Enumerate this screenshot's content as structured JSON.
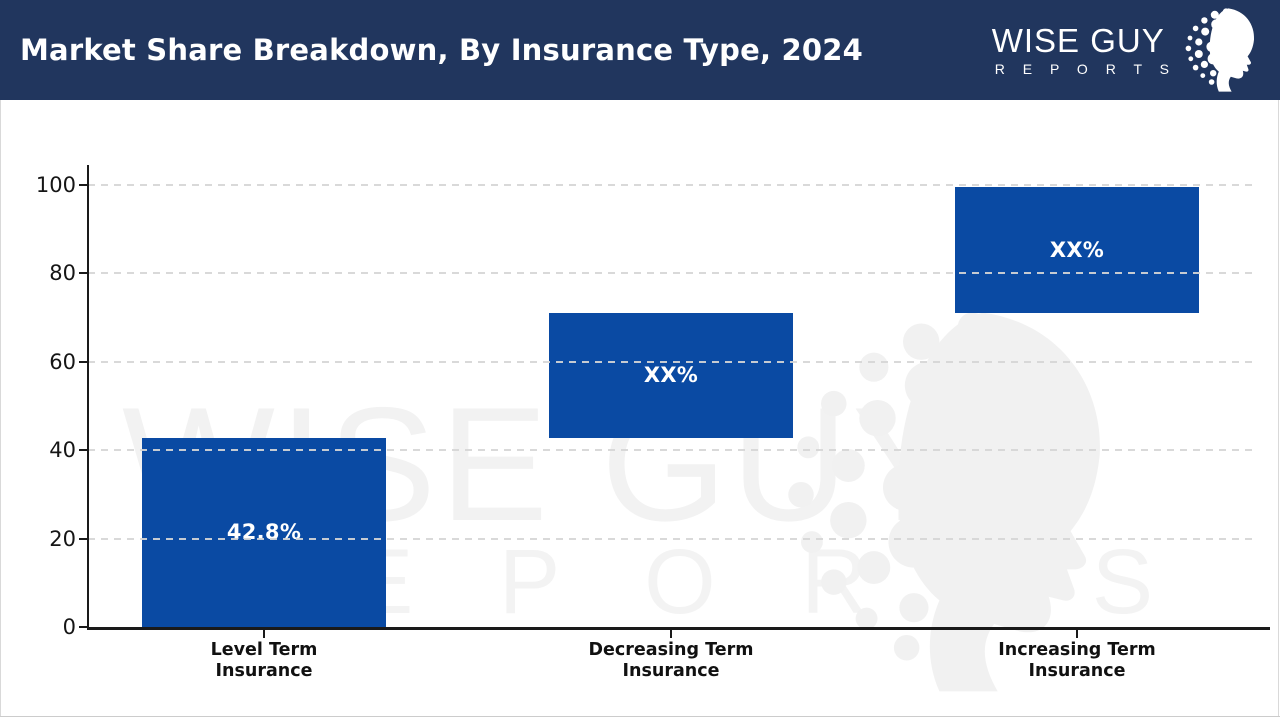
{
  "header": {
    "title": "Market Share Breakdown, By Insurance Type, 2024",
    "logo": {
      "line1": "WISE GUY",
      "line2": "R E P O R T S"
    }
  },
  "watermark": {
    "line1": "WISE GUY",
    "line2": "R E P O R T S"
  },
  "chart_data": {
    "type": "bar",
    "subtype": "floating-range-bars",
    "title": "Market Share Breakdown, By Insurance Type, 2024",
    "categories": [
      "Level Term Insurance",
      "Decreasing Term Insurance",
      "Increasing Term Insurance"
    ],
    "bars": [
      {
        "category_line1": "Level Term",
        "category_line2": "Insurance",
        "value_label": "42.8%",
        "range_start": 0,
        "range_end": 42.8
      },
      {
        "category_line1": "Decreasing Term",
        "category_line2": "Insurance",
        "value_label": "XX%",
        "range_start": 42.8,
        "range_end": 71.0
      },
      {
        "category_line1": "Increasing Term",
        "category_line2": "Insurance",
        "value_label": "XX%",
        "range_start": 71.0,
        "range_end": 99.5
      }
    ],
    "yticks": [
      "0",
      "20",
      "40",
      "60",
      "80",
      "100"
    ],
    "ylim": [
      0,
      104.5
    ],
    "xlabel": "",
    "ylabel": "",
    "grid": "horizontal-dashed",
    "legend": "none"
  },
  "colors": {
    "header_bg": "#21365e",
    "bar_blue": "#0a4aa3",
    "grid": "#d6d6d6",
    "axis": "#1a1a1a",
    "watermark": "#f2f2f2",
    "value_label": "#ffffff",
    "page_bg": "#ffffff"
  }
}
